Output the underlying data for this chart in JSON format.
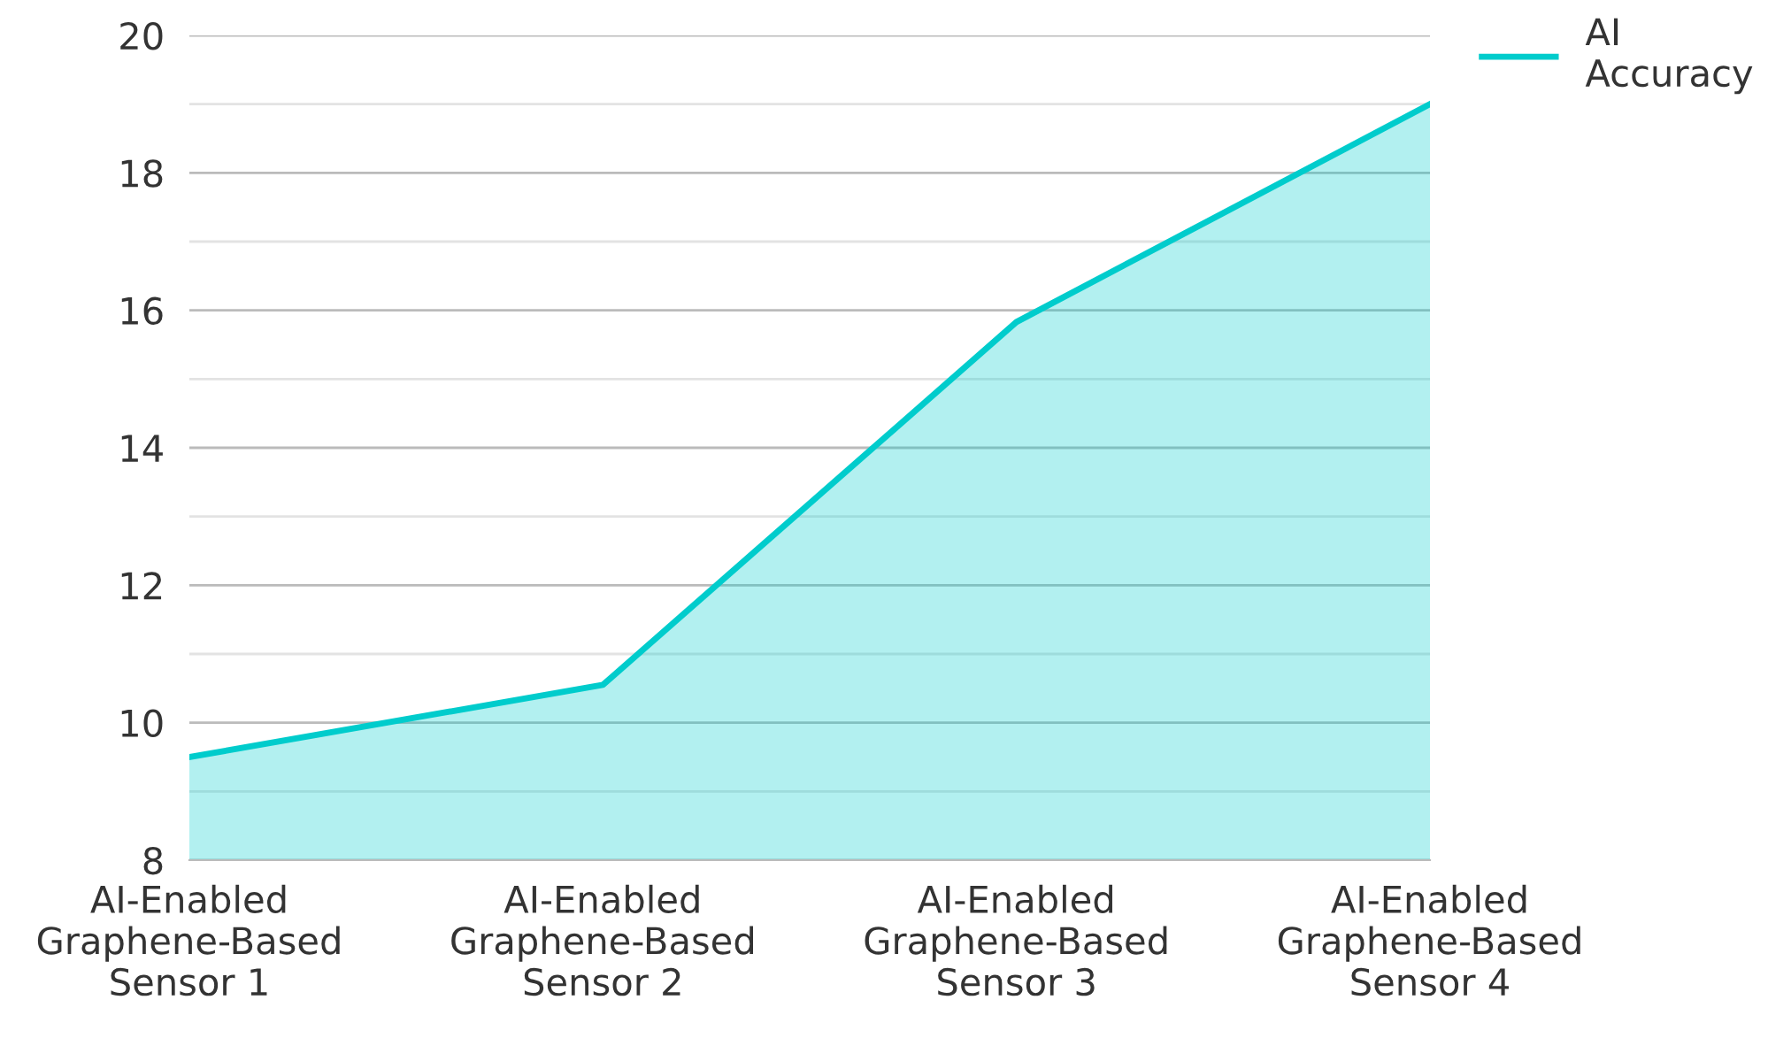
{
  "chart_data": {
    "type": "area",
    "categories": [
      "AI-Enabled\nGraphene-Based\nSensor 1",
      "AI-Enabled\nGraphene-Based\nSensor 2",
      "AI-Enabled\nGraphene-Based\nSensor 3",
      "AI-Enabled\nGraphene-Based\nSensor 4"
    ],
    "series": [
      {
        "name": "AI\nAccuracy",
        "color": "#00cccc",
        "values": [
          9.5,
          10.55,
          15.83,
          19.0
        ]
      }
    ],
    "ylim": [
      8,
      20
    ],
    "yticks": [
      8,
      {
        "value": 9,
        "label": null
      },
      10,
      {
        "value": 11,
        "label": null
      },
      12,
      {
        "value": 13,
        "label": null
      },
      14,
      {
        "value": 15,
        "label": null
      },
      16,
      {
        "value": 17,
        "label": null
      },
      18,
      {
        "value": 19,
        "label": null
      },
      20
    ],
    "grid": "y",
    "legend": "top right",
    "marker": "none",
    "line_style": "solid"
  }
}
